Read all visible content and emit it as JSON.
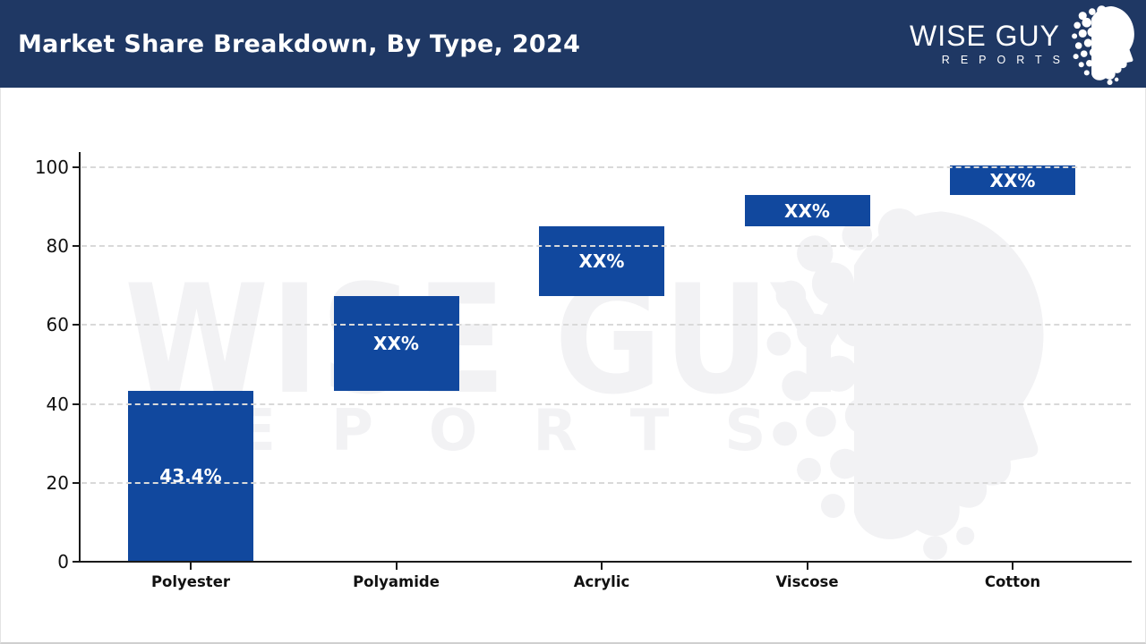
{
  "header": {
    "title": "Market Share Breakdown, By Type, 2024",
    "bg_color": "#1f3864",
    "logo": {
      "line1": "WISE GUY",
      "line2": "REPORTS"
    }
  },
  "watermark": {
    "line1": "WISE GUY",
    "line2": "REPORTS"
  },
  "chart_data": {
    "type": "bar",
    "subtype": "floating-waterfall",
    "title": "Market Share Breakdown, By Type, 2024",
    "categories": [
      "Polyester",
      "Polyamide",
      "Acrylic",
      "Viscose",
      "Cotton"
    ],
    "segments": [
      {
        "category": "Polyester",
        "start": 0,
        "end": 43.4,
        "label": "43.4%"
      },
      {
        "category": "Polyamide",
        "start": 43.4,
        "end": 67.3,
        "label": "XX%"
      },
      {
        "category": "Acrylic",
        "start": 67.3,
        "end": 85.0,
        "label": "XX%"
      },
      {
        "category": "Viscose",
        "start": 85.0,
        "end": 93.0,
        "label": "XX%"
      },
      {
        "category": "Cotton",
        "start": 93.0,
        "end": 100.4,
        "label": "XX%"
      }
    ],
    "xlabel": "",
    "ylabel": "",
    "yticks": [
      0,
      20,
      40,
      60,
      80,
      100
    ],
    "ylim": [
      0,
      104
    ],
    "grid": "horizontal-dashed",
    "legend": "none",
    "colors": {
      "bar": "#11489e",
      "bar_label": "#ffffff",
      "axis": "#1a1a1a",
      "gridline": "#d9d9d9",
      "tick_text": "#111111",
      "watermark": "#f2f2f4"
    }
  }
}
